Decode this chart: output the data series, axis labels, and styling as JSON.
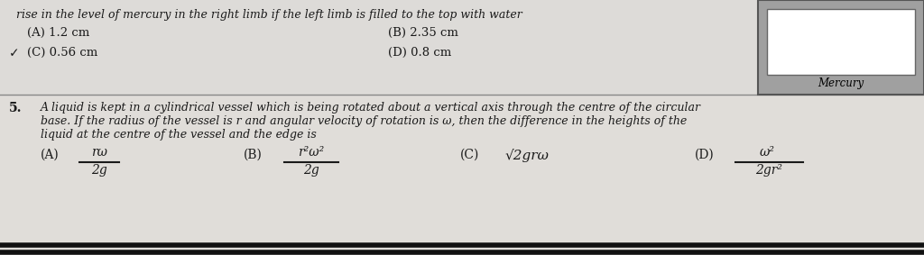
{
  "bg_color": "#c8c8c8",
  "content_bg": "#e8e6e3",
  "text_color": "#1a1a1a",
  "title_line": "rise in the level of mercury in the right limb if the left limb is filled to the top with water",
  "opt_A": "(A) 1.2 cm",
  "opt_B": "(B) 2.35 cm",
  "opt_C": "(C) 0.56 cm",
  "opt_D": "(D) 0.8 cm",
  "mercury_label": "Mercury",
  "q5_number": "5.",
  "q5_line1": "A liquid is kept in a cylindrical vessel which is being rotated about a vertical axis through the centre of the circular",
  "q5_line2": "base. If the radius of the vessel is r and angular velocity of rotation is ω, then the difference in the heights of the",
  "q5_line3": "liquid at the centre of the vessel and the edge is",
  "ans_A_label": "(A)",
  "ans_A_num": "rω",
  "ans_A_den": "2g",
  "ans_B_label": "(B)",
  "ans_B_num": "r²ω²",
  "ans_B_den": "2g",
  "ans_C_label": "(C)",
  "ans_C_expr": "√2grω",
  "ans_D_label": "(D)",
  "ans_D_num": "ω²",
  "ans_D_den": "2gr²",
  "fs_title": 9.0,
  "fs_opt": 9.5,
  "fs_q5": 9.0,
  "fs_ans": 10.0,
  "fs_mercury": 8.5
}
